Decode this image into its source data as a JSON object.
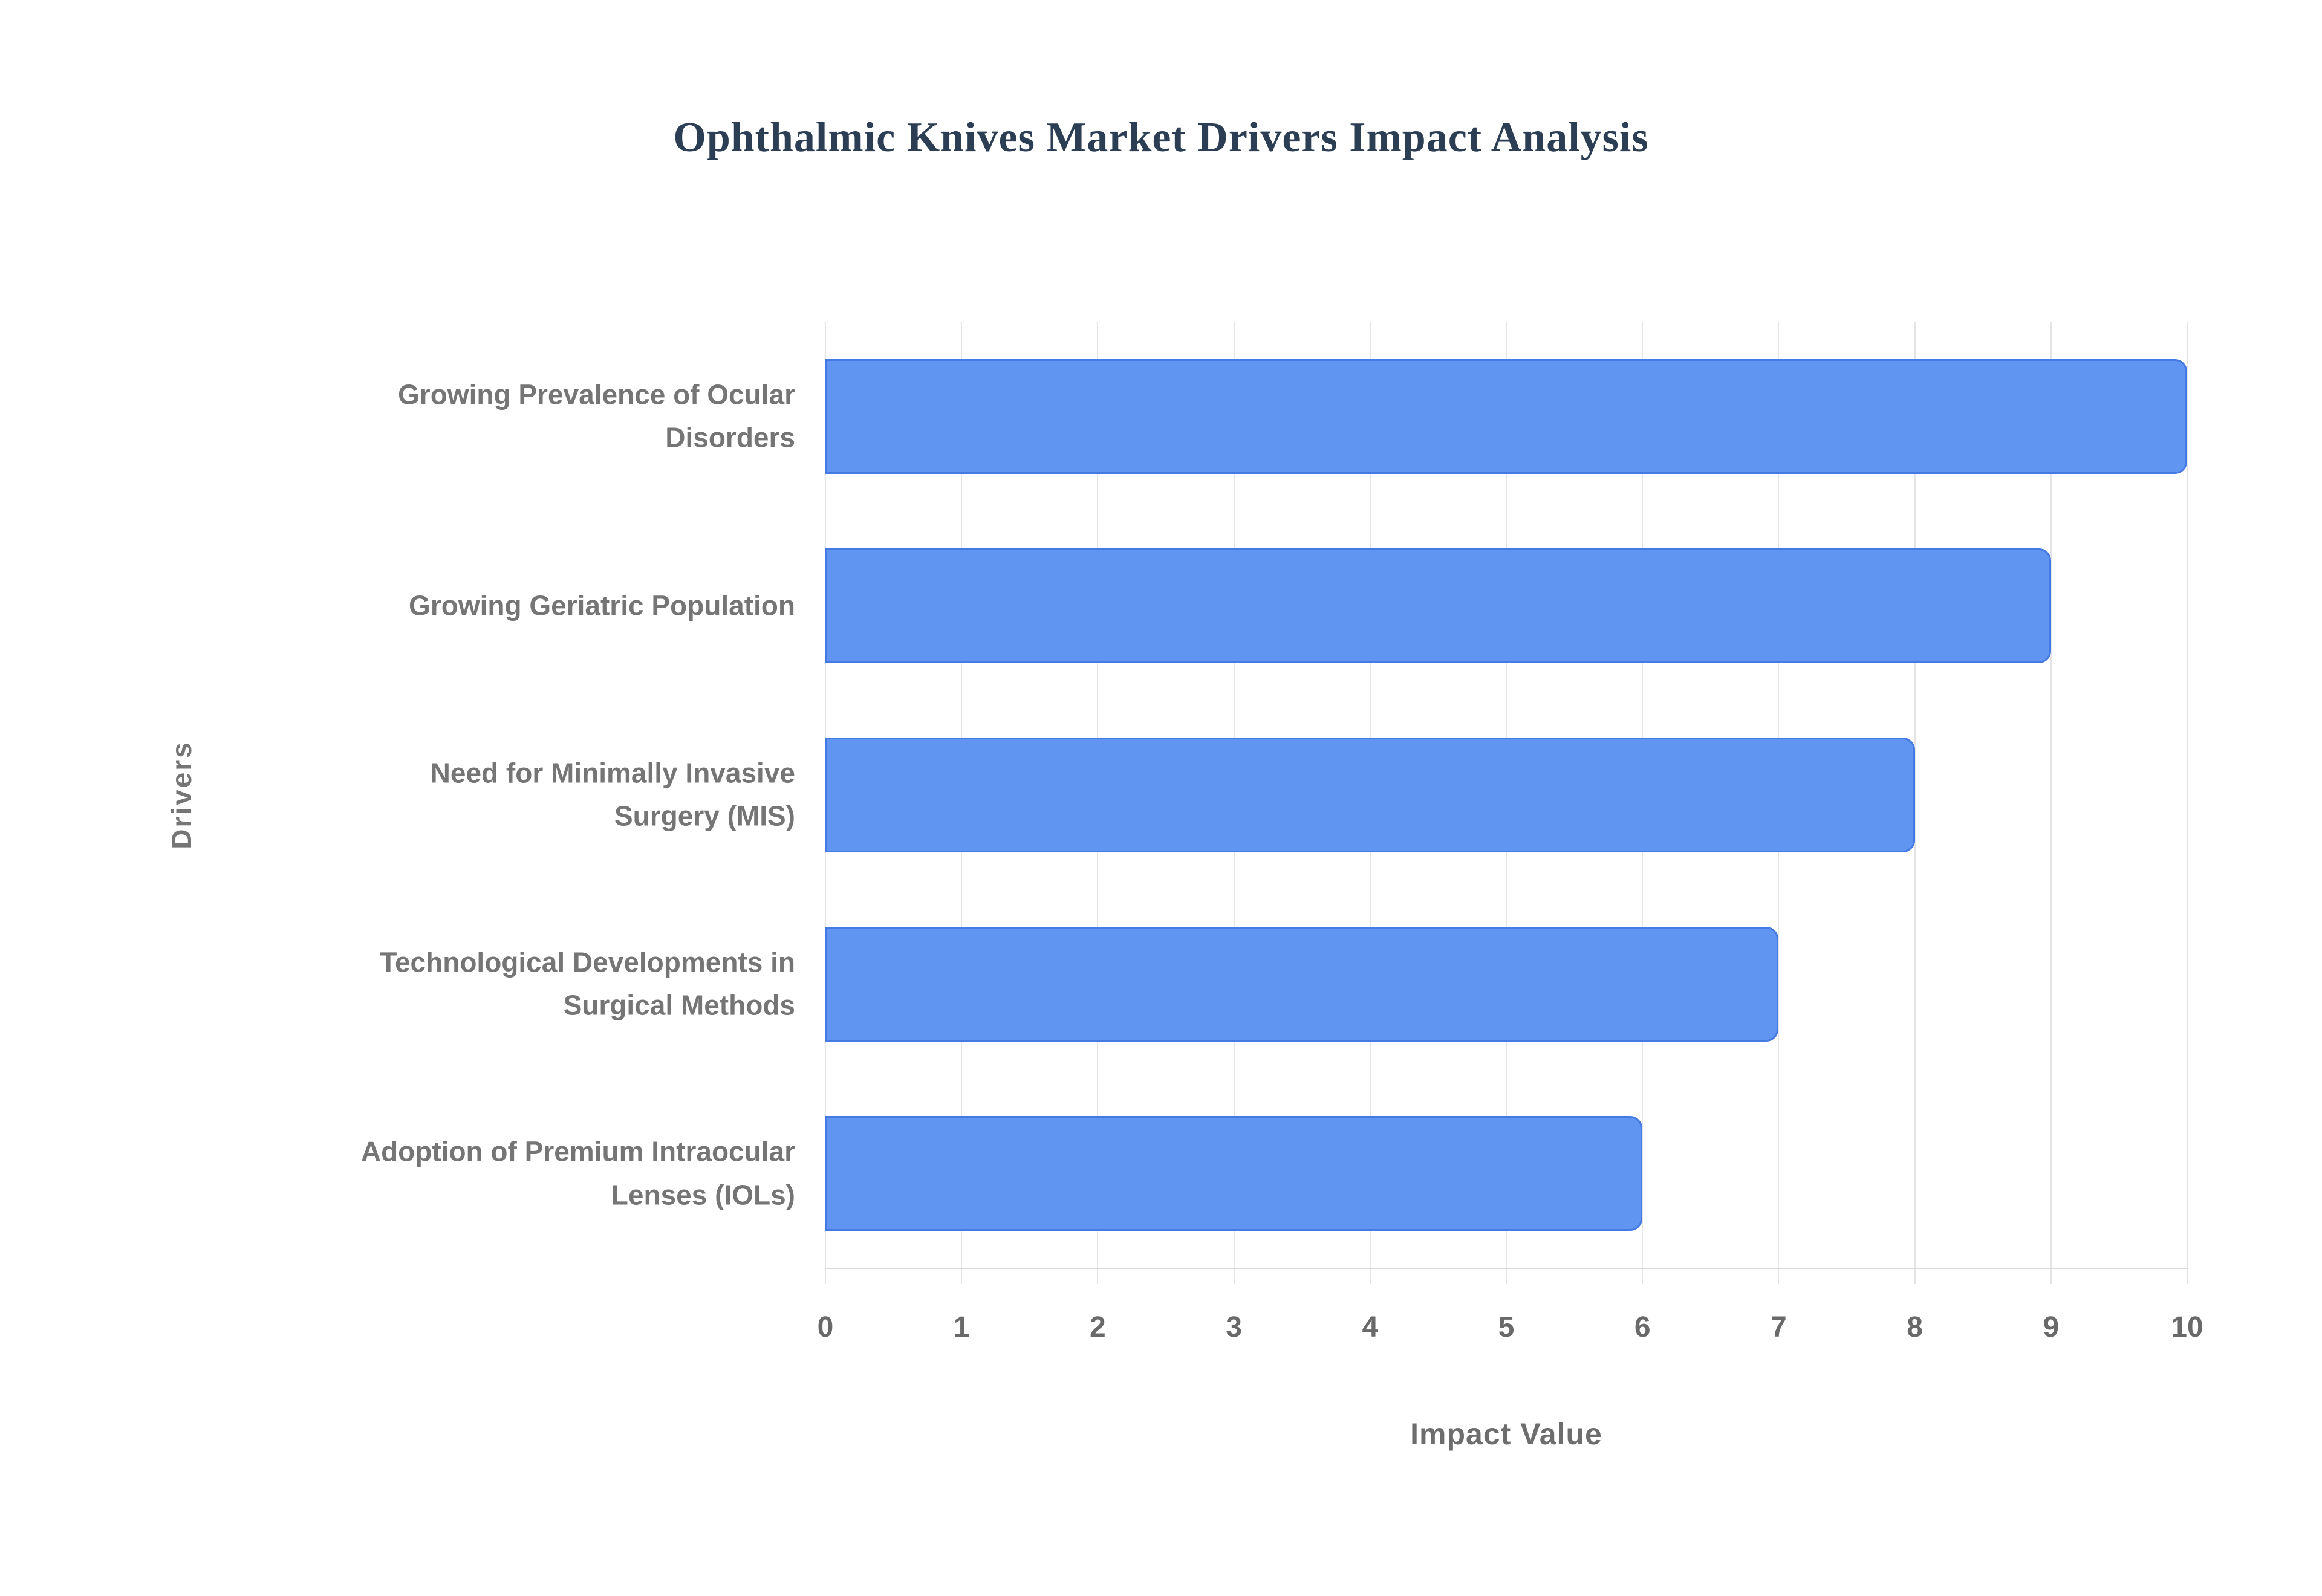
{
  "page": {
    "background": "#ffffff"
  },
  "chart_data": {
    "type": "bar",
    "orientation": "horizontal",
    "title": "Ophthalmic Knives Market Drivers Impact Analysis",
    "categories": [
      "Growing Prevalence of Ocular Disorders",
      "Growing Geriatric Population",
      "Need for Minimally Invasive Surgery (MIS)",
      "Technological Developments in Surgical Methods",
      "Adoption of Premium Intraocular Lenses (IOLs)"
    ],
    "values": [
      10,
      9,
      8,
      7,
      6
    ],
    "xlabel": "Impact Value",
    "ylabel": "Drivers",
    "xlim": [
      0,
      10
    ],
    "xticks": [
      0,
      1,
      2,
      3,
      4,
      5,
      6,
      7,
      8,
      9,
      10
    ],
    "grid": true,
    "legend": "none",
    "colors": {
      "bar_fill": "#6095f1",
      "bar_border": "#4579e4",
      "title_text": "#2b3e54",
      "axis_label_text": "#6d6d6d",
      "category_label_text": "#757575",
      "tick_label_text": "#696969",
      "gridline": "#e4e4e4",
      "axis_line": "#d9d9d9"
    }
  }
}
